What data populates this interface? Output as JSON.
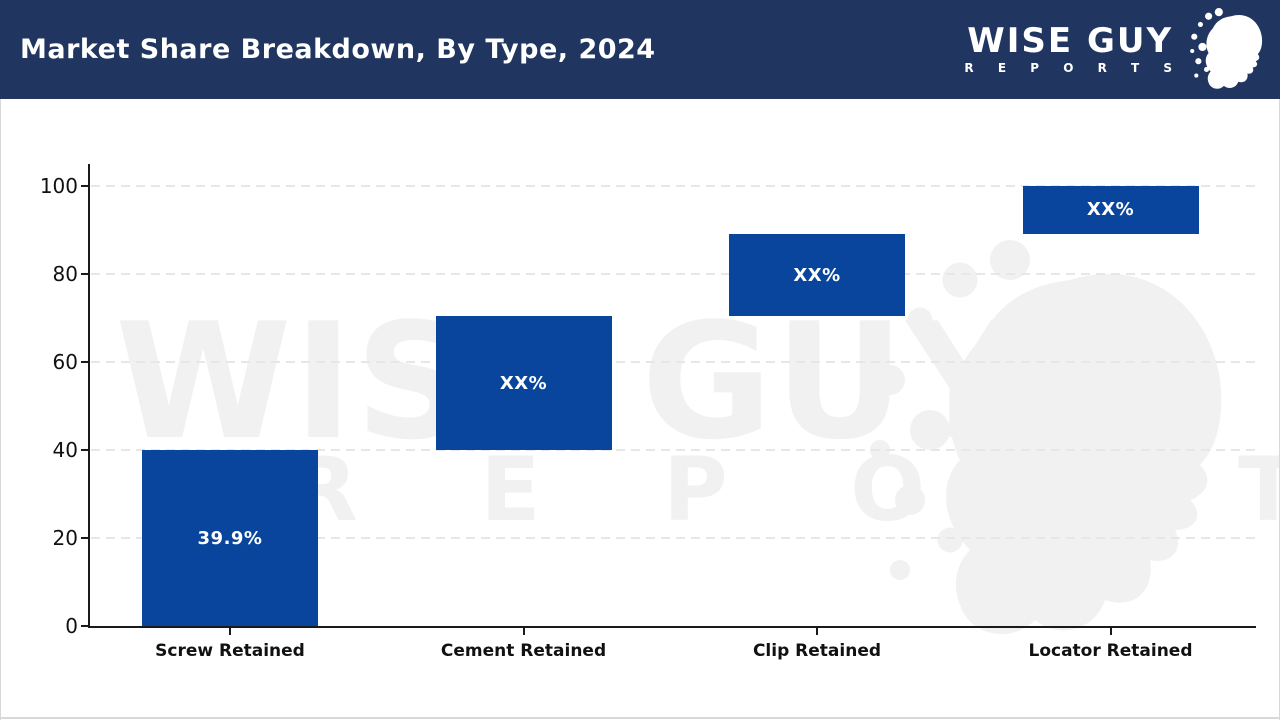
{
  "header": {
    "title": "Market Share Breakdown, By Type, 2024",
    "logo": {
      "line1": "WISE GUY",
      "line2": "R E P O R T S"
    }
  },
  "watermark": {
    "line1": "WISE GUY",
    "line2": "R E P O R T S"
  },
  "chart_data": {
    "type": "bar",
    "subtype": "floating-waterfall",
    "title": "Market Share Breakdown, By Type, 2024",
    "categories": [
      "Screw Retained",
      "Cement Retained",
      "Clip Retained",
      "Locator Retained"
    ],
    "segments": [
      {
        "label": "Screw Retained",
        "start": 0,
        "end": 39.9,
        "value_label": "39.9%"
      },
      {
        "label": "Cement Retained",
        "start": 39.9,
        "end": 70.4,
        "value_label": "XX%"
      },
      {
        "label": "Clip Retained",
        "start": 70.4,
        "end": 89.1,
        "value_label": "XX%"
      },
      {
        "label": "Locator Retained",
        "start": 89.1,
        "end": 100,
        "value_label": "XX%"
      }
    ],
    "xlabel": "",
    "ylabel": "",
    "yticks": [
      0,
      20,
      40,
      60,
      80,
      100
    ],
    "ylim": [
      0,
      105
    ],
    "grid": "horizontal-dashed",
    "legend": "none",
    "bar_color": "#0a459d",
    "value_label_color": "#ffffff"
  },
  "colors": {
    "header_bg": "#203660",
    "bar": "#0a459d",
    "axis": "#1a1a1a",
    "gridline": "#e7e7e7",
    "watermark": "#f1f1f1",
    "background": "#ffffff"
  }
}
